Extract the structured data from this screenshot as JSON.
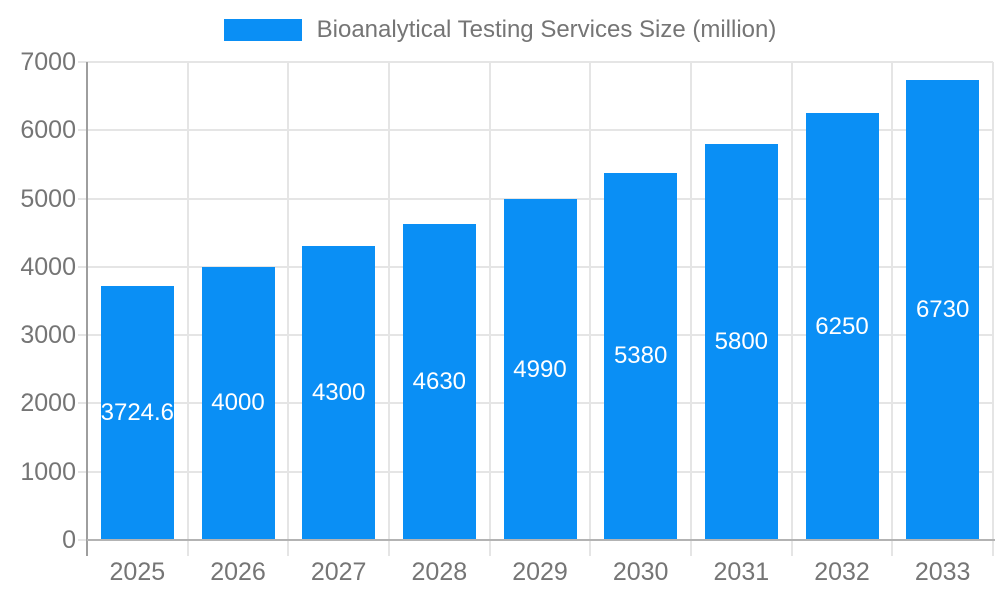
{
  "chart_data": {
    "type": "bar",
    "title": "Bioanalytical Testing Services Size (million)",
    "legend": {
      "label": "Bioanalytical Testing Services Size (million)",
      "position": "top-center",
      "swatch_color": "#0A8FF5"
    },
    "categories": [
      "2025",
      "2026",
      "2027",
      "2028",
      "2029",
      "2030",
      "2031",
      "2032",
      "2033"
    ],
    "values": [
      3724.6,
      4000,
      4300,
      4630,
      4990,
      5380,
      5800,
      6250,
      6730
    ],
    "value_labels": [
      "3724.6",
      "4000",
      "4300",
      "4630",
      "4990",
      "5380",
      "5800",
      "6250",
      "6730"
    ],
    "xlabel": "",
    "ylabel": "",
    "ylim": [
      0,
      7000
    ],
    "ytick_step": 1000,
    "ytick_labels": [
      "0",
      "1000",
      "2000",
      "3000",
      "4000",
      "5000",
      "6000",
      "7000"
    ],
    "grid": "horizontal and vertical light gray gridlines",
    "colors": {
      "bar": "#0A8FF5",
      "value_label": "#ffffff",
      "axis_label": "#757575",
      "grid_line": "#e5e5e5",
      "x_axis_line": "#b3b3b3",
      "y_axis_line": "#9e9e9e",
      "background": "#ffffff"
    }
  }
}
